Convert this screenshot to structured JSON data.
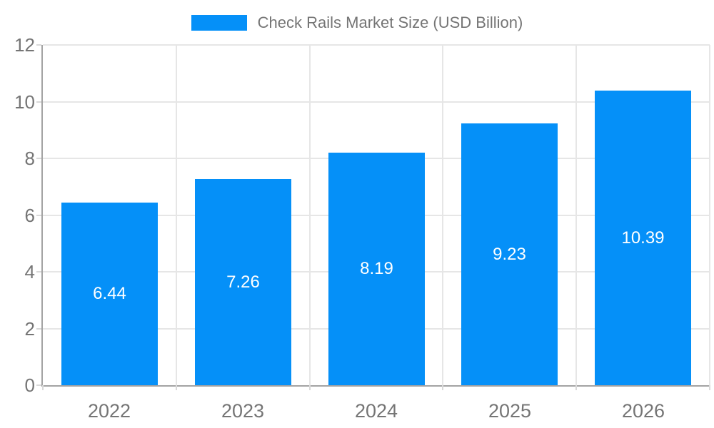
{
  "chart_data": {
    "type": "bar",
    "title": "",
    "legend": {
      "label": "Check Rails Market Size (USD Billion)",
      "position": "top"
    },
    "categories": [
      "2022",
      "2023",
      "2024",
      "2025",
      "2026"
    ],
    "series": [
      {
        "name": "Check Rails Market Size (USD Billion)",
        "values": [
          6.44,
          7.26,
          8.19,
          9.23,
          10.39
        ]
      }
    ],
    "value_labels": [
      "6.44",
      "7.26",
      "8.19",
      "9.23",
      "10.39"
    ],
    "xlabel": "",
    "ylabel": "",
    "ylim": [
      0,
      12
    ],
    "yticks": [
      0,
      2,
      4,
      6,
      8,
      10,
      12
    ],
    "ytick_labels": [
      "0",
      "2",
      "4",
      "6",
      "8",
      "10",
      "12"
    ],
    "grid": true,
    "colors": {
      "bar": "#0590f8",
      "grid": "#e6e6e6",
      "axis": "#a3a3a3",
      "tick": "#d9d9d9",
      "tick_label": "#757575",
      "legend_text": "#757575",
      "value_label": "#ffffff",
      "background": "#ffffff"
    }
  }
}
